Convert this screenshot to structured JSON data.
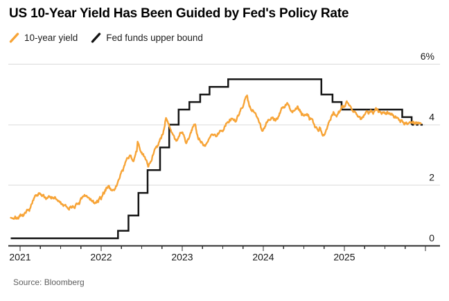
{
  "header": {
    "title": "US 10-Year Yield Has Been Guided by Fed's Policy Rate"
  },
  "legend": [
    {
      "label": "10-year yield",
      "color": "#F7A437"
    },
    {
      "label": "Fed funds upper bound",
      "color": "#141414"
    }
  ],
  "source": "Source: Bloomberg",
  "colors": {
    "yield_line": "#F7A437",
    "fed_line": "#141414",
    "gridline": "#d9d9d9",
    "axis": "#2e2e2e",
    "tick_label": "#161616"
  },
  "chart_data": {
    "type": "line",
    "title": "US 10-Year Yield Has Been Guided by Fed's Policy Rate",
    "xlabel": "",
    "ylabel": "",
    "grid": "horizontal",
    "legend_position": "top-left",
    "x_axis": {
      "range_years": [
        2020.855,
        2026.18
      ],
      "year_tick_labels": [
        "2021",
        "2022",
        "2023",
        "2024",
        "2025"
      ],
      "year_tick_values": [
        2021,
        2022,
        2023,
        2024,
        2025
      ],
      "minor_tick_interval_years": 0.25
    },
    "y_axis": {
      "range": [
        0,
        6
      ],
      "unit": "%",
      "ticks": [
        {
          "value": 0,
          "label": "0"
        },
        {
          "value": 2,
          "label": "2"
        },
        {
          "value": 4,
          "label": "4"
        },
        {
          "value": 6,
          "label": "6%"
        }
      ]
    },
    "series": [
      {
        "name": "10-year yield",
        "type": "line",
        "color": "#F7A437",
        "points": [
          [
            2020.885,
            0.93
          ],
          [
            2020.95,
            0.92
          ],
          [
            2021.02,
            0.96
          ],
          [
            2021.06,
            1.04
          ],
          [
            2021.1,
            1.17
          ],
          [
            2021.14,
            1.35
          ],
          [
            2021.18,
            1.6
          ],
          [
            2021.24,
            1.7
          ],
          [
            2021.28,
            1.63
          ],
          [
            2021.32,
            1.58
          ],
          [
            2021.36,
            1.64
          ],
          [
            2021.42,
            1.58
          ],
          [
            2021.46,
            1.5
          ],
          [
            2021.52,
            1.38
          ],
          [
            2021.56,
            1.28
          ],
          [
            2021.6,
            1.24
          ],
          [
            2021.64,
            1.3
          ],
          [
            2021.7,
            1.33
          ],
          [
            2021.74,
            1.46
          ],
          [
            2021.78,
            1.6
          ],
          [
            2021.82,
            1.65
          ],
          [
            2021.86,
            1.57
          ],
          [
            2021.9,
            1.46
          ],
          [
            2021.92,
            1.38
          ],
          [
            2021.96,
            1.48
          ],
          [
            2022.0,
            1.58
          ],
          [
            2022.04,
            1.78
          ],
          [
            2022.08,
            1.96
          ],
          [
            2022.12,
            1.92
          ],
          [
            2022.16,
            1.78
          ],
          [
            2022.2,
            2.05
          ],
          [
            2022.24,
            2.38
          ],
          [
            2022.28,
            2.6
          ],
          [
            2022.32,
            2.85
          ],
          [
            2022.36,
            2.95
          ],
          [
            2022.4,
            2.82
          ],
          [
            2022.44,
            3.12
          ],
          [
            2022.45,
            3.45
          ],
          [
            2022.48,
            3.18
          ],
          [
            2022.52,
            2.98
          ],
          [
            2022.56,
            2.78
          ],
          [
            2022.58,
            2.62
          ],
          [
            2022.62,
            2.85
          ],
          [
            2022.66,
            3.2
          ],
          [
            2022.7,
            3.3
          ],
          [
            2022.74,
            3.55
          ],
          [
            2022.78,
            3.95
          ],
          [
            2022.8,
            4.22
          ],
          [
            2022.83,
            4.1
          ],
          [
            2022.86,
            3.82
          ],
          [
            2022.9,
            3.6
          ],
          [
            2022.93,
            3.47
          ],
          [
            2022.97,
            3.7
          ],
          [
            2023.0,
            3.75
          ],
          [
            2023.05,
            3.4
          ],
          [
            2023.09,
            3.62
          ],
          [
            2023.13,
            3.92
          ],
          [
            2023.16,
            4.03
          ],
          [
            2023.2,
            3.55
          ],
          [
            2023.24,
            3.42
          ],
          [
            2023.27,
            3.32
          ],
          [
            2023.31,
            3.4
          ],
          [
            2023.35,
            3.62
          ],
          [
            2023.39,
            3.7
          ],
          [
            2023.43,
            3.62
          ],
          [
            2023.47,
            3.78
          ],
          [
            2023.51,
            3.85
          ],
          [
            2023.55,
            4.08
          ],
          [
            2023.59,
            4.18
          ],
          [
            2023.63,
            4.25
          ],
          [
            2023.66,
            4.1
          ],
          [
            2023.7,
            4.32
          ],
          [
            2023.74,
            4.58
          ],
          [
            2023.78,
            4.85
          ],
          [
            2023.8,
            4.99
          ],
          [
            2023.83,
            4.62
          ],
          [
            2023.86,
            4.5
          ],
          [
            2023.89,
            4.42
          ],
          [
            2023.93,
            4.25
          ],
          [
            2023.97,
            3.95
          ],
          [
            2023.99,
            3.82
          ],
          [
            2024.03,
            4.02
          ],
          [
            2024.07,
            4.15
          ],
          [
            2024.11,
            4.25
          ],
          [
            2024.15,
            4.1
          ],
          [
            2024.19,
            4.3
          ],
          [
            2024.23,
            4.52
          ],
          [
            2024.27,
            4.6
          ],
          [
            2024.31,
            4.7
          ],
          [
            2024.34,
            4.48
          ],
          [
            2024.38,
            4.42
          ],
          [
            2024.42,
            4.6
          ],
          [
            2024.45,
            4.42
          ],
          [
            2024.49,
            4.28
          ],
          [
            2024.53,
            4.38
          ],
          [
            2024.57,
            4.22
          ],
          [
            2024.61,
            4.18
          ],
          [
            2024.64,
            3.95
          ],
          [
            2024.68,
            3.85
          ],
          [
            2024.7,
            3.9
          ],
          [
            2024.73,
            3.65
          ],
          [
            2024.76,
            3.72
          ],
          [
            2024.8,
            4.02
          ],
          [
            2024.84,
            4.25
          ],
          [
            2024.87,
            4.42
          ],
          [
            2024.9,
            4.28
          ],
          [
            2024.93,
            4.4
          ],
          [
            2024.97,
            4.58
          ],
          [
            2025.0,
            4.62
          ],
          [
            2025.03,
            4.78
          ],
          [
            2025.06,
            4.65
          ],
          [
            2025.09,
            4.52
          ],
          [
            2025.12,
            4.48
          ],
          [
            2025.16,
            4.28
          ],
          [
            2025.2,
            4.2
          ],
          [
            2025.24,
            4.32
          ],
          [
            2025.27,
            4.42
          ],
          [
            2025.3,
            4.38
          ],
          [
            2025.33,
            4.45
          ],
          [
            2025.36,
            4.36
          ],
          [
            2025.39,
            4.52
          ],
          [
            2025.42,
            4.46
          ],
          [
            2025.46,
            4.4
          ],
          [
            2025.5,
            4.35
          ],
          [
            2025.54,
            4.42
          ],
          [
            2025.58,
            4.32
          ],
          [
            2025.62,
            4.28
          ],
          [
            2025.66,
            4.22
          ],
          [
            2025.7,
            4.14
          ],
          [
            2025.74,
            4.1
          ],
          [
            2025.78,
            4.0
          ],
          [
            2025.81,
            4.08
          ],
          [
            2025.84,
            4.12
          ],
          [
            2025.87,
            4.02
          ],
          [
            2025.9,
            3.99
          ],
          [
            2025.92,
            4.08
          ],
          [
            2025.945,
            4.04
          ]
        ]
      },
      {
        "name": "Fed funds upper bound",
        "type": "step",
        "color": "#141414",
        "points": [
          [
            2020.885,
            0.25
          ],
          [
            2022.208,
            0.5
          ],
          [
            2022.337,
            1.0
          ],
          [
            2022.46,
            1.75
          ],
          [
            2022.573,
            2.5
          ],
          [
            2022.727,
            3.25
          ],
          [
            2022.84,
            4.0
          ],
          [
            2022.956,
            4.5
          ],
          [
            2023.088,
            4.75
          ],
          [
            2023.222,
            5.0
          ],
          [
            2023.337,
            5.25
          ],
          [
            2023.567,
            5.5
          ],
          [
            2024.717,
            5.0
          ],
          [
            2024.854,
            4.75
          ],
          [
            2024.966,
            4.5
          ],
          [
            2025.714,
            4.25
          ],
          [
            2025.83,
            4.0
          ],
          [
            2025.945,
            4.0
          ]
        ]
      }
    ]
  }
}
